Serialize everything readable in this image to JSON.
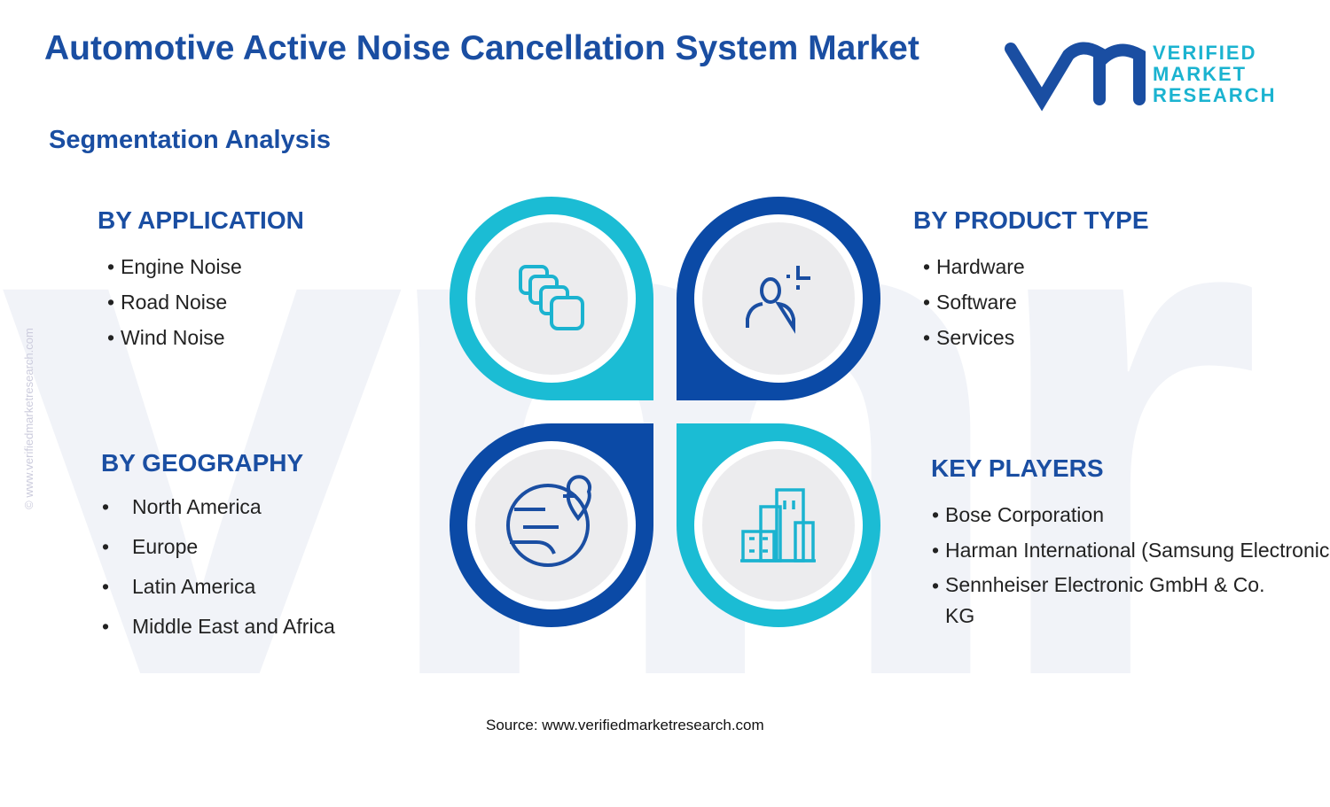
{
  "header": {
    "title": "Automotive Active Noise Cancellation System Market",
    "subtitle": "Segmentation Analysis"
  },
  "logo": {
    "line1": "VERIFIED",
    "line2": "MARKET",
    "line3": "RESEARCH"
  },
  "watermark": "© www.verifiedmarketresearch.com",
  "sections": [
    {
      "heading": "BY APPLICATION",
      "items": [
        "Engine Noise",
        "Road Noise",
        "Wind Noise"
      ]
    },
    {
      "heading": "BY PRODUCT TYPE",
      "items": [
        "Hardware",
        "Software",
        "Services"
      ]
    },
    {
      "heading": "BY GEOGRAPHY",
      "items": [
        "North America",
        "Europe",
        "Latin America",
        "Middle East and Africa"
      ]
    },
    {
      "heading": "KEY PLAYERS",
      "items": [
        "Bose Corporation",
        "Harman International (Samsung Electronics)",
        "Sennheiser Electronic GmbH & Co. KG"
      ]
    }
  ],
  "source": "Source: www.verifiedmarketresearch.com"
}
